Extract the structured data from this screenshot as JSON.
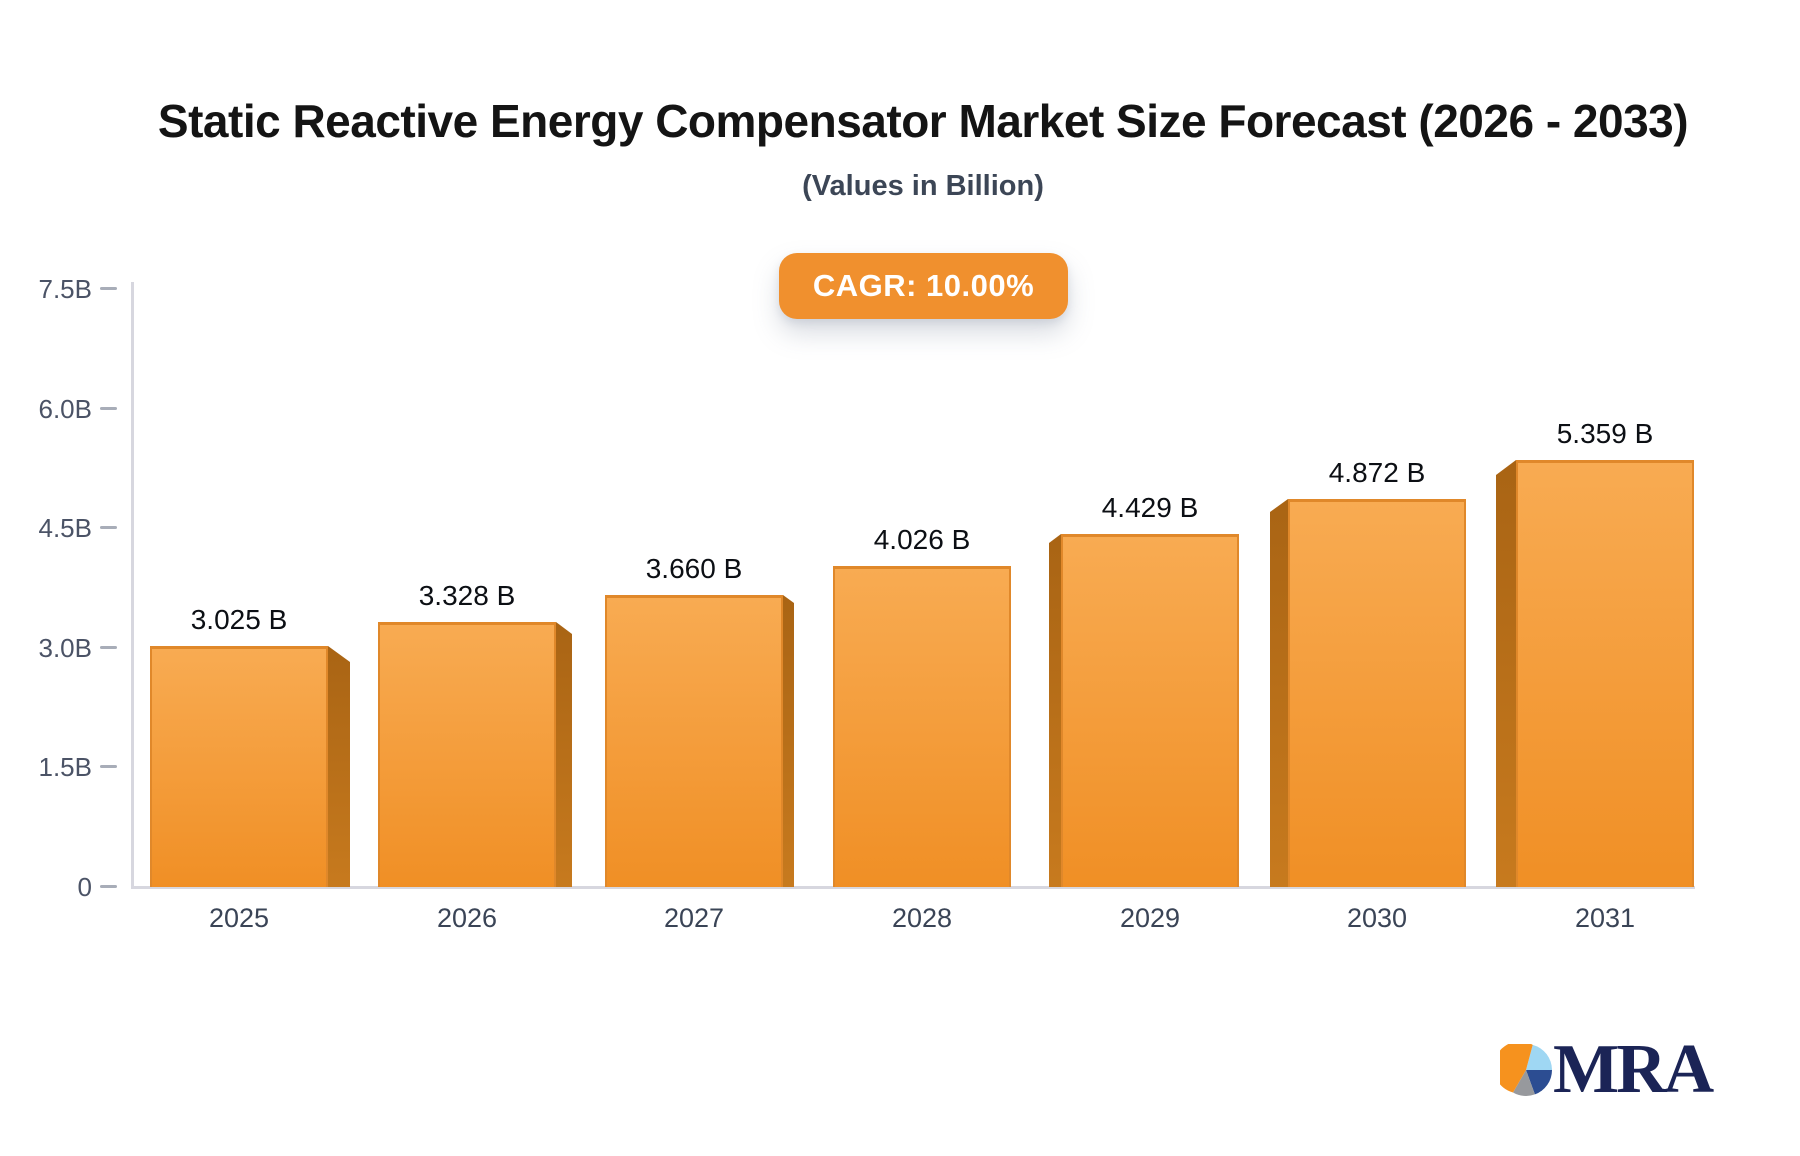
{
  "chart_data": {
    "type": "bar",
    "title": "Static Reactive Energy Compensator Market Size Forecast (2026 - 2033)",
    "subtitle": "(Values in Billion)",
    "cagr_label": "CAGR: 10.00%",
    "categories": [
      "2025",
      "2026",
      "2027",
      "2028",
      "2029",
      "2030",
      "2031"
    ],
    "values": [
      3.025,
      3.328,
      3.66,
      4.026,
      4.429,
      4.872,
      5.359
    ],
    "data_labels": [
      "3.025 B",
      "3.328 B",
      "3.660 B",
      "4.026 B",
      "4.429 B",
      "4.872 B",
      "5.359 B"
    ],
    "unit": "Billion",
    "xlabel": "",
    "ylabel": "",
    "ylim": [
      0,
      7.5
    ],
    "yticks": [
      {
        "label": "7.5B",
        "value": 7.5
      },
      {
        "label": "6.0B",
        "value": 6.0
      },
      {
        "label": "4.5B",
        "value": 4.5
      },
      {
        "label": "3.0B",
        "value": 3.0
      },
      {
        "label": "1.5B",
        "value": 1.5
      },
      {
        "label": "0",
        "value": 0
      }
    ],
    "grid": false,
    "legend": false,
    "bar_style": "3d-extruded, perspective toward center bar"
  },
  "logo": {
    "text": "MRA",
    "pie": {
      "orange": "#f6921e",
      "lightblue": "#9fd7f3",
      "darkblue": "#2c4d92",
      "gray": "#97999d"
    }
  },
  "colors": {
    "c-title": "#141414",
    "c-subtitle": "#3c4656",
    "c-badge": "#f0902e",
    "c-axis": "#d7d7df",
    "c-tick": "#a8adb8",
    "c-ylabel": "#4b5366",
    "c-xlabel": "#3a4456",
    "c-value": "#0c0f14",
    "c-bar-top": "#f8ab52",
    "c-bar-bot": "#f08f25",
    "c-bar-border": "#e0882a",
    "c-bar-side-top": "#a96414",
    "c-bar-side-bot": "#c77a1e",
    "c-navy": "#1b2456"
  }
}
